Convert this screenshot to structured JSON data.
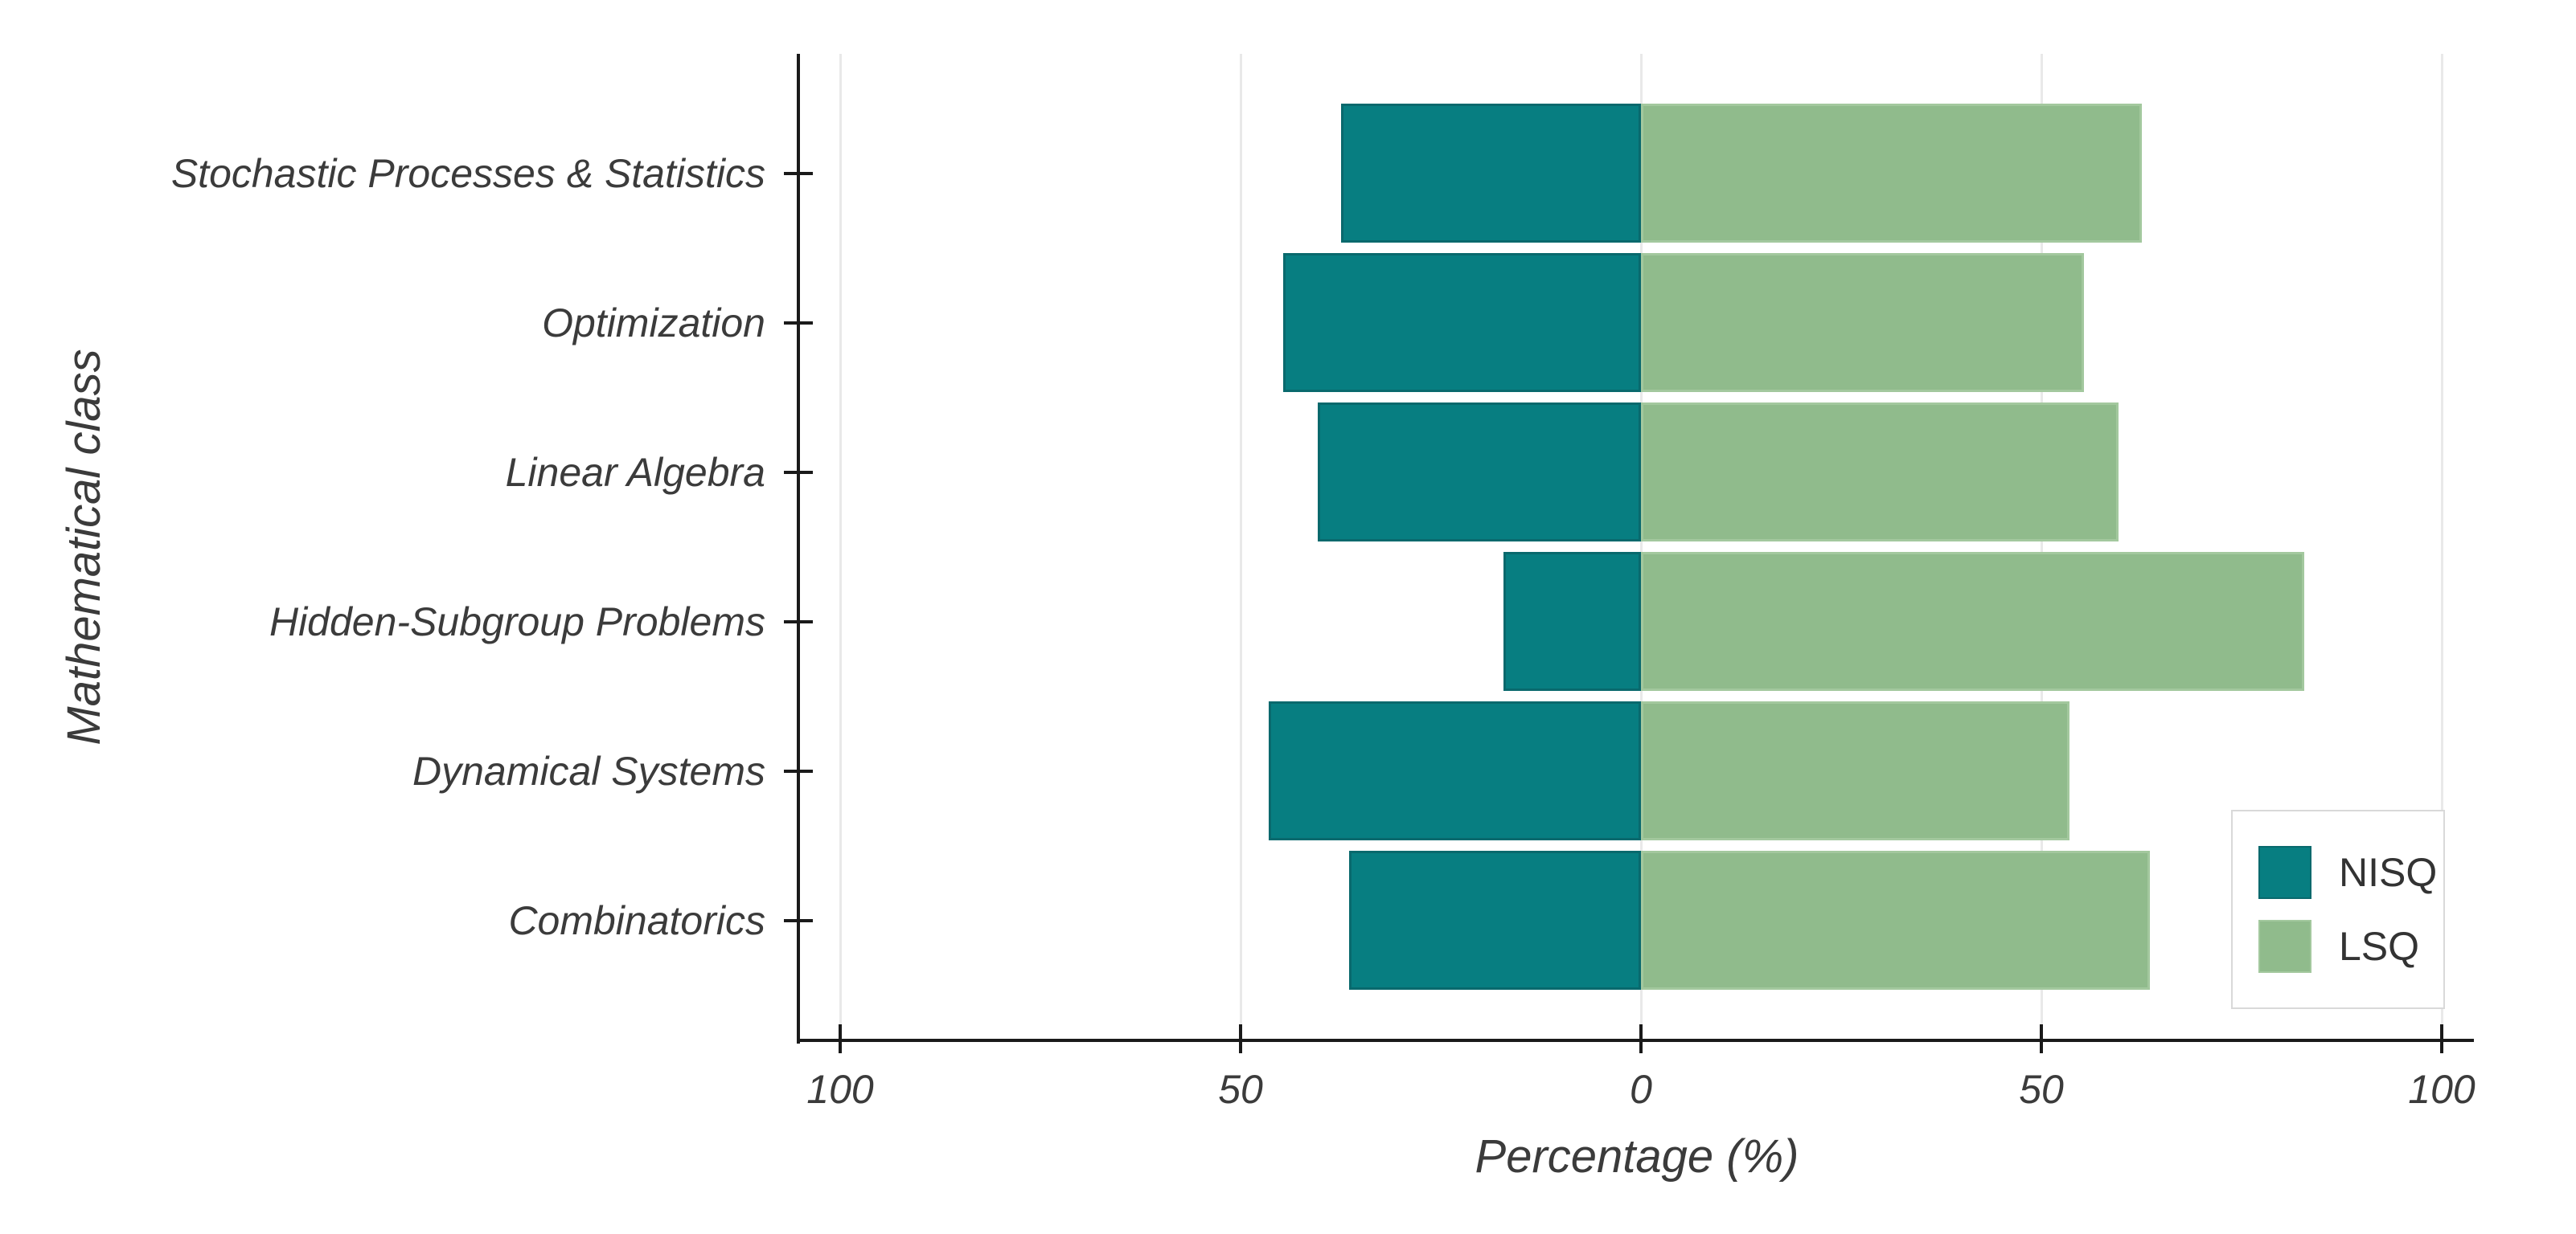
{
  "figure": {
    "background": "#ffffff",
    "text_color": "#3b3b3b"
  },
  "chart_data": {
    "type": "bar",
    "variant": "horizontal-diverging",
    "title": "",
    "xlabel": "Percentage (%)",
    "ylabel": "Mathematical class",
    "categories": [
      "Stochastic Processes & Statistics",
      "Optimization",
      "Linear Algebra",
      "Hidden-Subgroup Problems",
      "Dynamical Systems",
      "Combinatorics"
    ],
    "series": [
      {
        "name": "NISQ",
        "direction": "left",
        "color": "#077e81",
        "edge_color": "#09696d",
        "values": [
          37.5,
          44.7,
          40.4,
          17.2,
          46.5,
          36.4
        ]
      },
      {
        "name": "LSQ",
        "direction": "right",
        "color": "#90bb8c",
        "edge_color": "#a3c89e",
        "values": [
          62.5,
          55.3,
          59.6,
          82.8,
          53.5,
          63.6
        ]
      }
    ],
    "x_ticks": [
      {
        "value": -100,
        "label": "100"
      },
      {
        "value": -50,
        "label": "50"
      },
      {
        "value": 0,
        "label": "0"
      },
      {
        "value": 50,
        "label": "50"
      },
      {
        "value": 100,
        "label": "100"
      }
    ],
    "xlim": [
      -105,
      104
    ],
    "grid": "vertical",
    "grid_color": "#e9e9e9",
    "spine_color": "#1a1a1a",
    "legend_position": "lower right"
  }
}
